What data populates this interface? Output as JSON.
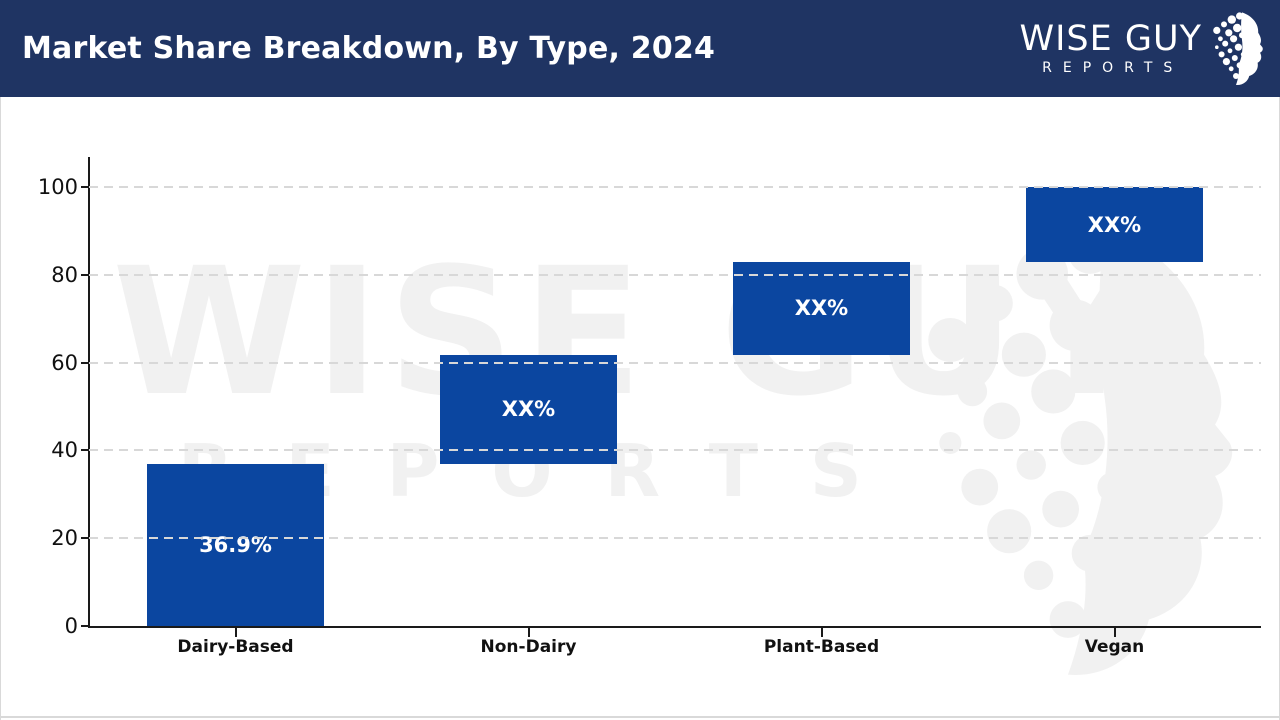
{
  "header": {
    "title": "Market Share Breakdown, By Type, 2024",
    "logo": {
      "line1": "WISE GUY",
      "line2": "REPORTS"
    }
  },
  "watermark": {
    "line1": "WISE GUY",
    "line2": "REPORTS"
  },
  "colors": {
    "header_bg": "#1F3463",
    "bar": "#0B46A0",
    "grid": "#D8D8D8",
    "axis": "#1A1A1A",
    "tick_text": "#111111",
    "bar_label_text": "#FFFFFF",
    "watermark": "#F1F1F1",
    "bottom_rule": "#D9D9D9"
  },
  "chart_data": {
    "type": "bar",
    "subtype": "waterfall",
    "title": "Market Share Breakdown, By Type, 2024",
    "categories": [
      "Dairy-Based",
      "Non-Dairy",
      "Plant-Based",
      "Vegan"
    ],
    "segments": [
      {
        "category": "Dairy-Based",
        "start": 0,
        "end": 36.9,
        "label": "36.9%"
      },
      {
        "category": "Non-Dairy",
        "start": 36.9,
        "end": 61.8,
        "label": "XX%"
      },
      {
        "category": "Plant-Based",
        "start": 61.8,
        "end": 82.9,
        "label": "XX%"
      },
      {
        "category": "Vegan",
        "start": 82.9,
        "end": 100,
        "label": "XX%"
      }
    ],
    "xlabel": "",
    "ylabel": "",
    "ylim": [
      0,
      100
    ],
    "yticks": [
      0,
      20,
      40,
      60,
      80,
      100
    ],
    "grid": "horizontal-dashed, drawn above bars",
    "legend": "none"
  }
}
